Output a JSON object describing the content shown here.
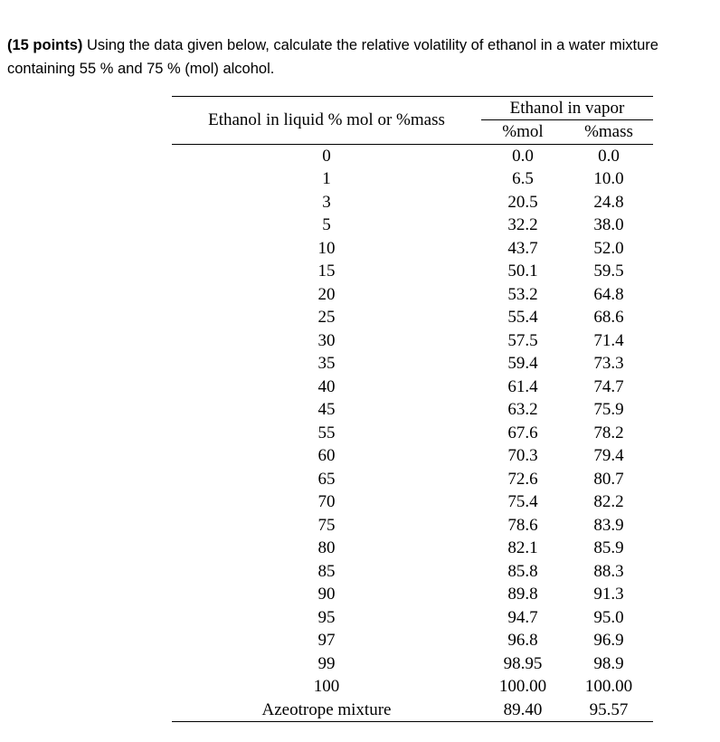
{
  "problem": {
    "points_label": "(15 points)",
    "text": "Using the data given below, calculate the relative volatility of ethanol in a water mixture containing 55 % and 75 % (mol) alcohol."
  },
  "table": {
    "col1_header": "Ethanol in liquid % mol or %mass",
    "vapor_header": "Ethanol in vapor",
    "sub_headers": [
      "%mol",
      "%mass"
    ],
    "rows": [
      [
        "0",
        "0.0",
        "0.0"
      ],
      [
        "1",
        "6.5",
        "10.0"
      ],
      [
        "3",
        "20.5",
        "24.8"
      ],
      [
        "5",
        "32.2",
        "38.0"
      ],
      [
        "10",
        "43.7",
        "52.0"
      ],
      [
        "15",
        "50.1",
        "59.5"
      ],
      [
        "20",
        "53.2",
        "64.8"
      ],
      [
        "25",
        "55.4",
        "68.6"
      ],
      [
        "30",
        "57.5",
        "71.4"
      ],
      [
        "35",
        "59.4",
        "73.3"
      ],
      [
        "40",
        "61.4",
        "74.7"
      ],
      [
        "45",
        "63.2",
        "75.9"
      ],
      [
        "55",
        "67.6",
        "78.2"
      ],
      [
        "60",
        "70.3",
        "79.4"
      ],
      [
        "65",
        "72.6",
        "80.7"
      ],
      [
        "70",
        "75.4",
        "82.2"
      ],
      [
        "75",
        "78.6",
        "83.9"
      ],
      [
        "80",
        "82.1",
        "85.9"
      ],
      [
        "85",
        "85.8",
        "88.3"
      ],
      [
        "90",
        "89.8",
        "91.3"
      ],
      [
        "95",
        "94.7",
        "95.0"
      ],
      [
        "97",
        "96.8",
        "96.9"
      ],
      [
        "99",
        "98.95",
        "98.9"
      ],
      [
        "100",
        "100.00",
        "100.00"
      ],
      [
        "Azeotrope mixture",
        "89.40",
        "95.57"
      ]
    ]
  }
}
